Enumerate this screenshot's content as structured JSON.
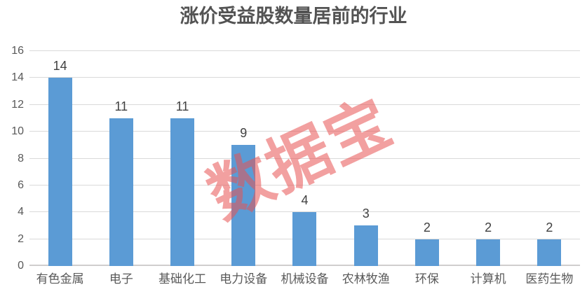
{
  "title": "涨价受益股数量居前的行业",
  "watermark": "数据宝",
  "colors": {
    "bar": "#5B9BD5",
    "gridline": "#D9D9D9",
    "axis_line": "#CFCDCD",
    "title_text": "#535353",
    "axis_text": "#595959",
    "value_text": "#404040",
    "watermark_text": "rgba(231,82,82,0.55)"
  },
  "chart_data": {
    "type": "bar",
    "title": "涨价受益股数量居前的行业",
    "watermark": "数据宝",
    "categories": [
      "有色金属",
      "电子",
      "基础化工",
      "电力设备",
      "机械设备",
      "农林牧渔",
      "环保",
      "计算机",
      "医药生物"
    ],
    "values": [
      14,
      11,
      11,
      9,
      4,
      3,
      2,
      2,
      2
    ],
    "xlabel": "",
    "ylabel": "",
    "ylim": [
      0,
      16
    ],
    "ytick_step": 2,
    "yticks": [
      0,
      2,
      4,
      6,
      8,
      10,
      12,
      14,
      16
    ],
    "grid": true,
    "legend": false,
    "data_labels": true
  }
}
